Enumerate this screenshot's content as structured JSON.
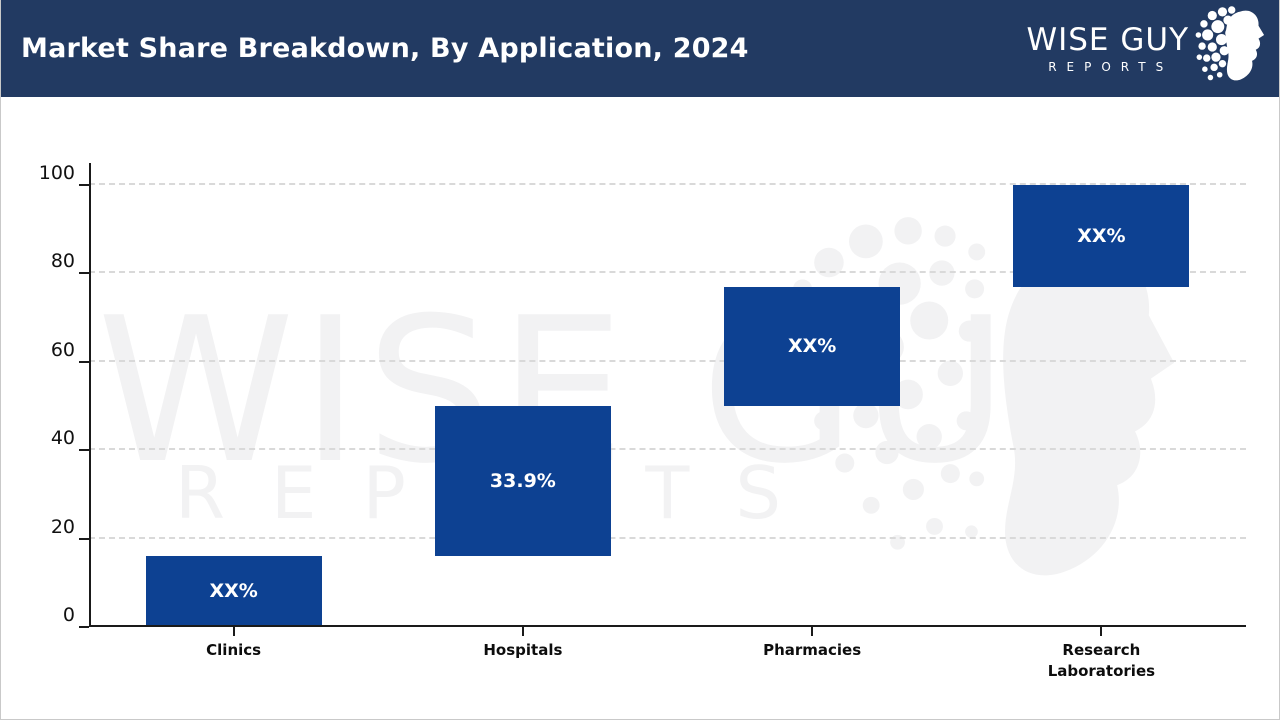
{
  "header": {
    "bg_color": "#223a62",
    "title": "Market Share Breakdown, By Application, 2024",
    "logo": {
      "wordmark": "WISE GUY",
      "subtext": "REPORTS"
    }
  },
  "watermark": {
    "wordmark": "WISE GUY",
    "subtext": "REPORTS"
  },
  "chart_data": {
    "type": "bar",
    "subtype": "floating-waterfall",
    "title": "Market Share Breakdown, By Application, 2024",
    "categories": [
      "Clinics",
      "Hospitals",
      "Pharmacies",
      "Research Laboratories"
    ],
    "bars": [
      {
        "category": "Clinics",
        "start": 0,
        "end": 16.1,
        "label": "XX%"
      },
      {
        "category": "Hospitals",
        "start": 16.1,
        "end": 50,
        "label": "33.9%"
      },
      {
        "category": "Pharmacies",
        "start": 50,
        "end": 77,
        "label": "XX%"
      },
      {
        "category": "Research Laboratories",
        "start": 77,
        "end": 100,
        "label": "XX%"
      }
    ],
    "bar_color": "#0d4192",
    "bar_label_color": "#ffffff",
    "yticks": [
      0,
      20,
      40,
      60,
      80,
      100
    ],
    "ylim": [
      0,
      105
    ],
    "xlabel": "",
    "ylabel": "",
    "grid": "dashed-horizontal",
    "legend": "none",
    "watermark_color": "#f2f2f3"
  }
}
